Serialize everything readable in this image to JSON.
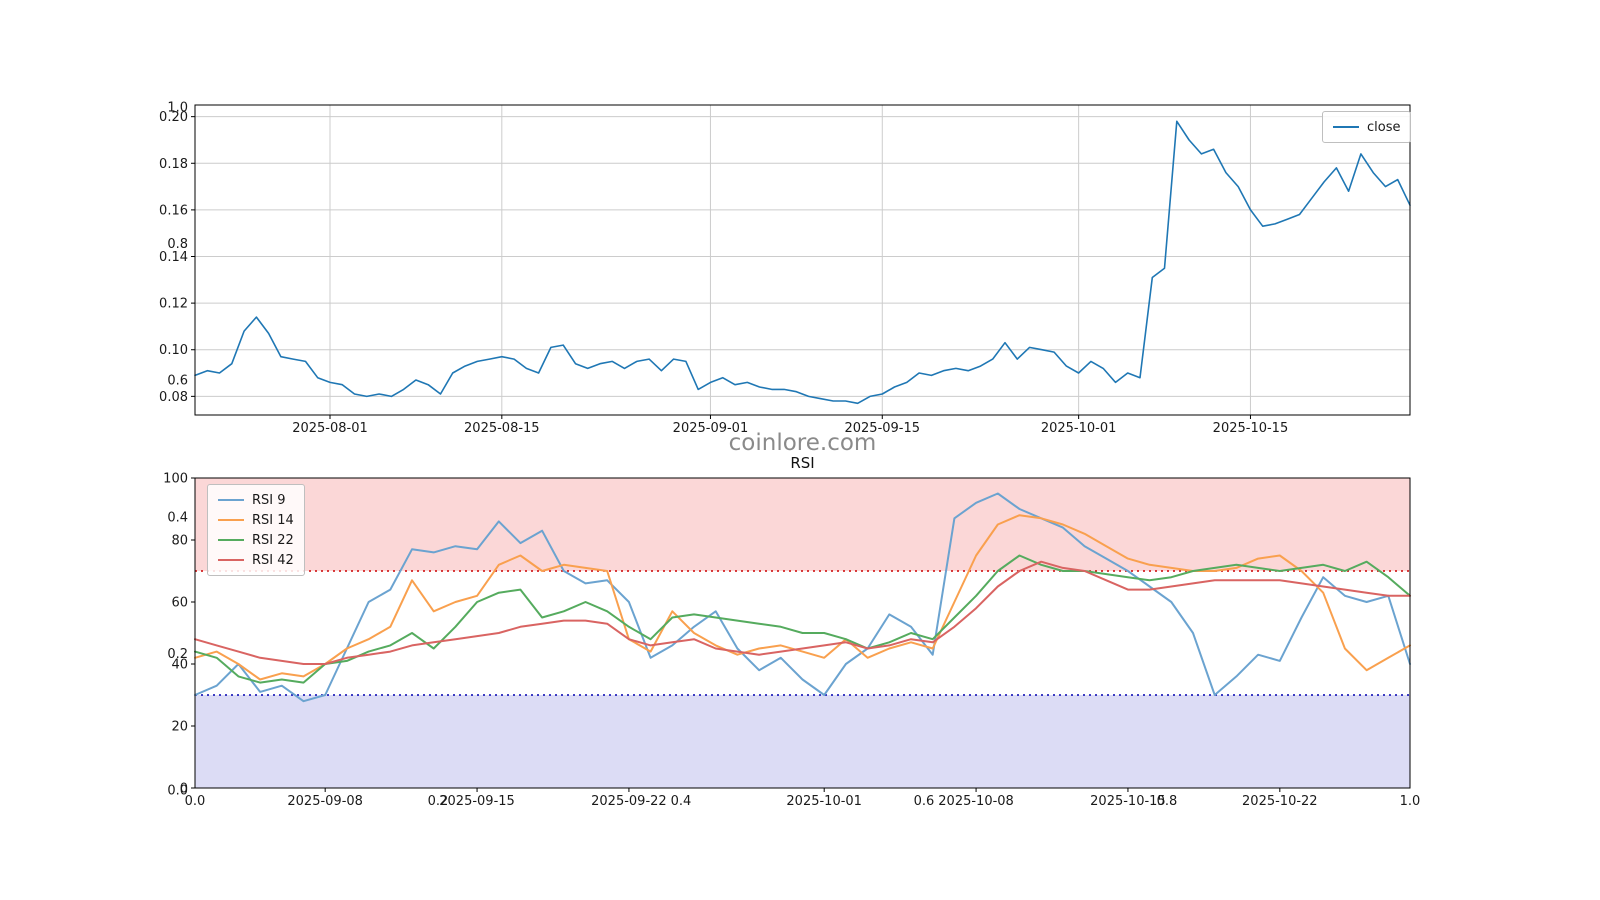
{
  "watermark": "coinlore.com",
  "colors": {
    "grid": "#cccccc",
    "spine": "#000000",
    "tick_text": "#1a1a1a",
    "watermark": "#8a8a8a"
  },
  "overlay_axis": {
    "y_ticks": [
      {
        "pos": 1.0,
        "label": "1.0"
      },
      {
        "pos": 0.8,
        "label": "0.8"
      },
      {
        "pos": 0.6,
        "label": "0.6"
      },
      {
        "pos": 0.4,
        "label": "0.4"
      },
      {
        "pos": 0.2,
        "label": "0.2"
      },
      {
        "pos": 0.0,
        "label": "0.0"
      }
    ],
    "x_ticks": [
      {
        "pos": 0.0,
        "label": "0.0"
      },
      {
        "pos": 0.2,
        "label": "0.2"
      },
      {
        "pos": 0.4,
        "label": "0.4"
      },
      {
        "pos": 0.6,
        "label": "0.6"
      },
      {
        "pos": 0.8,
        "label": "0.8"
      },
      {
        "pos": 1.0,
        "label": "1.0"
      }
    ]
  },
  "chart_data": [
    {
      "type": "line",
      "title": "",
      "legend_position": "upper right",
      "grid": true,
      "ylim": [
        0.072,
        0.205
      ],
      "yticks": [
        0.08,
        0.1,
        0.12,
        0.14,
        0.16,
        0.18,
        0.2
      ],
      "ytick_labels": [
        "0.08",
        "0.10",
        "0.12",
        "0.14",
        "0.16",
        "0.18",
        "0.20"
      ],
      "xticks": [
        "2025-08-01",
        "2025-08-15",
        "2025-09-01",
        "2025-09-15",
        "2025-10-01",
        "2025-10-15"
      ],
      "x": [
        "2025-07-21",
        "2025-07-22",
        "2025-07-23",
        "2025-07-24",
        "2025-07-25",
        "2025-07-26",
        "2025-07-27",
        "2025-07-28",
        "2025-07-29",
        "2025-07-30",
        "2025-07-31",
        "2025-08-01",
        "2025-08-02",
        "2025-08-03",
        "2025-08-04",
        "2025-08-05",
        "2025-08-06",
        "2025-08-07",
        "2025-08-08",
        "2025-08-09",
        "2025-08-10",
        "2025-08-11",
        "2025-08-12",
        "2025-08-13",
        "2025-08-14",
        "2025-08-15",
        "2025-08-16",
        "2025-08-17",
        "2025-08-18",
        "2025-08-19",
        "2025-08-20",
        "2025-08-21",
        "2025-08-22",
        "2025-08-23",
        "2025-08-24",
        "2025-08-25",
        "2025-08-26",
        "2025-08-27",
        "2025-08-28",
        "2025-08-29",
        "2025-08-30",
        "2025-08-31",
        "2025-09-01",
        "2025-09-02",
        "2025-09-03",
        "2025-09-04",
        "2025-09-05",
        "2025-09-06",
        "2025-09-07",
        "2025-09-08",
        "2025-09-09",
        "2025-09-10",
        "2025-09-11",
        "2025-09-12",
        "2025-09-13",
        "2025-09-14",
        "2025-09-15",
        "2025-09-16",
        "2025-09-17",
        "2025-09-18",
        "2025-09-19",
        "2025-09-20",
        "2025-09-21",
        "2025-09-22",
        "2025-09-23",
        "2025-09-24",
        "2025-09-25",
        "2025-09-26",
        "2025-09-27",
        "2025-09-28",
        "2025-09-29",
        "2025-09-30",
        "2025-10-01",
        "2025-10-02",
        "2025-10-03",
        "2025-10-04",
        "2025-10-05",
        "2025-10-06",
        "2025-10-07",
        "2025-10-08",
        "2025-10-09",
        "2025-10-10",
        "2025-10-11",
        "2025-10-12",
        "2025-10-13",
        "2025-10-14",
        "2025-10-15",
        "2025-10-16",
        "2025-10-17",
        "2025-10-18",
        "2025-10-19",
        "2025-10-20",
        "2025-10-21",
        "2025-10-22",
        "2025-10-23",
        "2025-10-24",
        "2025-10-25",
        "2025-10-26",
        "2025-10-27",
        "2025-10-28"
      ],
      "series": [
        {
          "name": "close",
          "color": "#1f77b4",
          "values": [
            0.089,
            0.091,
            0.09,
            0.094,
            0.108,
            0.114,
            0.107,
            0.097,
            0.096,
            0.095,
            0.088,
            0.086,
            0.085,
            0.081,
            0.08,
            0.081,
            0.08,
            0.083,
            0.087,
            0.085,
            0.081,
            0.09,
            0.093,
            0.095,
            0.096,
            0.097,
            0.096,
            0.092,
            0.09,
            0.101,
            0.102,
            0.094,
            0.092,
            0.094,
            0.095,
            0.092,
            0.095,
            0.096,
            0.091,
            0.096,
            0.095,
            0.083,
            0.086,
            0.088,
            0.085,
            0.086,
            0.084,
            0.083,
            0.083,
            0.082,
            0.08,
            0.079,
            0.078,
            0.078,
            0.077,
            0.08,
            0.081,
            0.084,
            0.086,
            0.09,
            0.089,
            0.091,
            0.092,
            0.091,
            0.093,
            0.096,
            0.103,
            0.096,
            0.101,
            0.1,
            0.099,
            0.093,
            0.09,
            0.095,
            0.092,
            0.086,
            0.09,
            0.088,
            0.131,
            0.135,
            0.198,
            0.19,
            0.184,
            0.186,
            0.176,
            0.17,
            0.16,
            0.153,
            0.154,
            0.156,
            0.158,
            0.165,
            0.172,
            0.178,
            0.168,
            0.184,
            0.176,
            0.17,
            0.173,
            0.162
          ]
        }
      ]
    },
    {
      "type": "line",
      "title": "RSI",
      "legend_position": "upper left",
      "grid": false,
      "ylim": [
        0,
        100
      ],
      "yticks": [
        0,
        20,
        40,
        60,
        80,
        100
      ],
      "ytick_labels": [
        "0",
        "20",
        "40",
        "60",
        "80",
        "100"
      ],
      "xticks": [
        "2025-09-08",
        "2025-09-15",
        "2025-09-22",
        "2025-10-01",
        "2025-10-08",
        "2025-10-15",
        "2025-10-22"
      ],
      "bands": [
        {
          "from": 70,
          "to": 100,
          "color": "#fbd7d7"
        },
        {
          "from": 0,
          "to": 30,
          "color": "#dcdcf5"
        }
      ],
      "hlines": [
        {
          "y": 70,
          "color": "#cc0000",
          "style": "dotted"
        },
        {
          "y": 30,
          "color": "#0000b0",
          "style": "dotted"
        }
      ],
      "x": [
        "2025-09-02",
        "2025-09-03",
        "2025-09-04",
        "2025-09-05",
        "2025-09-06",
        "2025-09-07",
        "2025-09-08",
        "2025-09-09",
        "2025-09-10",
        "2025-09-11",
        "2025-09-12",
        "2025-09-13",
        "2025-09-14",
        "2025-09-15",
        "2025-09-16",
        "2025-09-17",
        "2025-09-18",
        "2025-09-19",
        "2025-09-20",
        "2025-09-21",
        "2025-09-22",
        "2025-09-23",
        "2025-09-24",
        "2025-09-25",
        "2025-09-26",
        "2025-09-27",
        "2025-09-28",
        "2025-09-29",
        "2025-09-30",
        "2025-10-01",
        "2025-10-02",
        "2025-10-03",
        "2025-10-04",
        "2025-10-05",
        "2025-10-06",
        "2025-10-07",
        "2025-10-08",
        "2025-10-09",
        "2025-10-10",
        "2025-10-11",
        "2025-10-12",
        "2025-10-13",
        "2025-10-14",
        "2025-10-15",
        "2025-10-16",
        "2025-10-17",
        "2025-10-18",
        "2025-10-19",
        "2025-10-20",
        "2025-10-21",
        "2025-10-22",
        "2025-10-23",
        "2025-10-24",
        "2025-10-25",
        "2025-10-26",
        "2025-10-27",
        "2025-10-28"
      ],
      "series": [
        {
          "name": "RSI 9",
          "color": "#6ba3d0",
          "values": [
            30,
            33,
            40,
            31,
            33,
            28,
            30,
            45,
            60,
            64,
            77,
            76,
            78,
            77,
            86,
            79,
            83,
            70,
            66,
            67,
            60,
            42,
            46,
            52,
            57,
            45,
            38,
            42,
            35,
            30,
            40,
            45,
            56,
            52,
            43,
            87,
            92,
            95,
            90,
            87,
            84,
            78,
            74,
            70,
            65,
            60,
            50,
            30,
            36,
            43,
            41,
            55,
            68,
            62,
            60,
            62,
            40
          ]
        },
        {
          "name": "RSI 14",
          "color": "#f9a04e",
          "values": [
            42,
            44,
            40,
            35,
            37,
            36,
            40,
            45,
            48,
            52,
            67,
            57,
            60,
            62,
            72,
            75,
            70,
            72,
            71,
            70,
            48,
            44,
            57,
            50,
            46,
            43,
            45,
            46,
            44,
            42,
            48,
            42,
            45,
            47,
            45,
            60,
            75,
            85,
            88,
            87,
            85,
            82,
            78,
            74,
            72,
            71,
            70,
            70,
            71,
            74,
            75,
            70,
            63,
            45,
            38,
            42,
            46
          ]
        },
        {
          "name": "RSI 22",
          "color": "#55ab5e",
          "values": [
            44,
            42,
            36,
            34,
            35,
            34,
            40,
            41,
            44,
            46,
            50,
            45,
            52,
            60,
            63,
            64,
            55,
            57,
            60,
            57,
            52,
            48,
            55,
            56,
            55,
            54,
            53,
            52,
            50,
            50,
            48,
            45,
            47,
            50,
            48,
            55,
            62,
            70,
            75,
            72,
            70,
            70,
            69,
            68,
            67,
            68,
            70,
            71,
            72,
            71,
            70,
            71,
            72,
            70,
            73,
            68,
            62
          ]
        },
        {
          "name": "RSI 42",
          "color": "#d96462",
          "values": [
            48,
            46,
            44,
            42,
            41,
            40,
            40,
            42,
            43,
            44,
            46,
            47,
            48,
            49,
            50,
            52,
            53,
            54,
            54,
            53,
            48,
            46,
            47,
            48,
            45,
            44,
            43,
            44,
            45,
            46,
            47,
            45,
            46,
            48,
            47,
            52,
            58,
            65,
            70,
            73,
            71,
            70,
            67,
            64,
            64,
            65,
            66,
            67,
            67,
            67,
            67,
            66,
            65,
            64,
            63,
            62,
            62
          ]
        }
      ]
    }
  ]
}
